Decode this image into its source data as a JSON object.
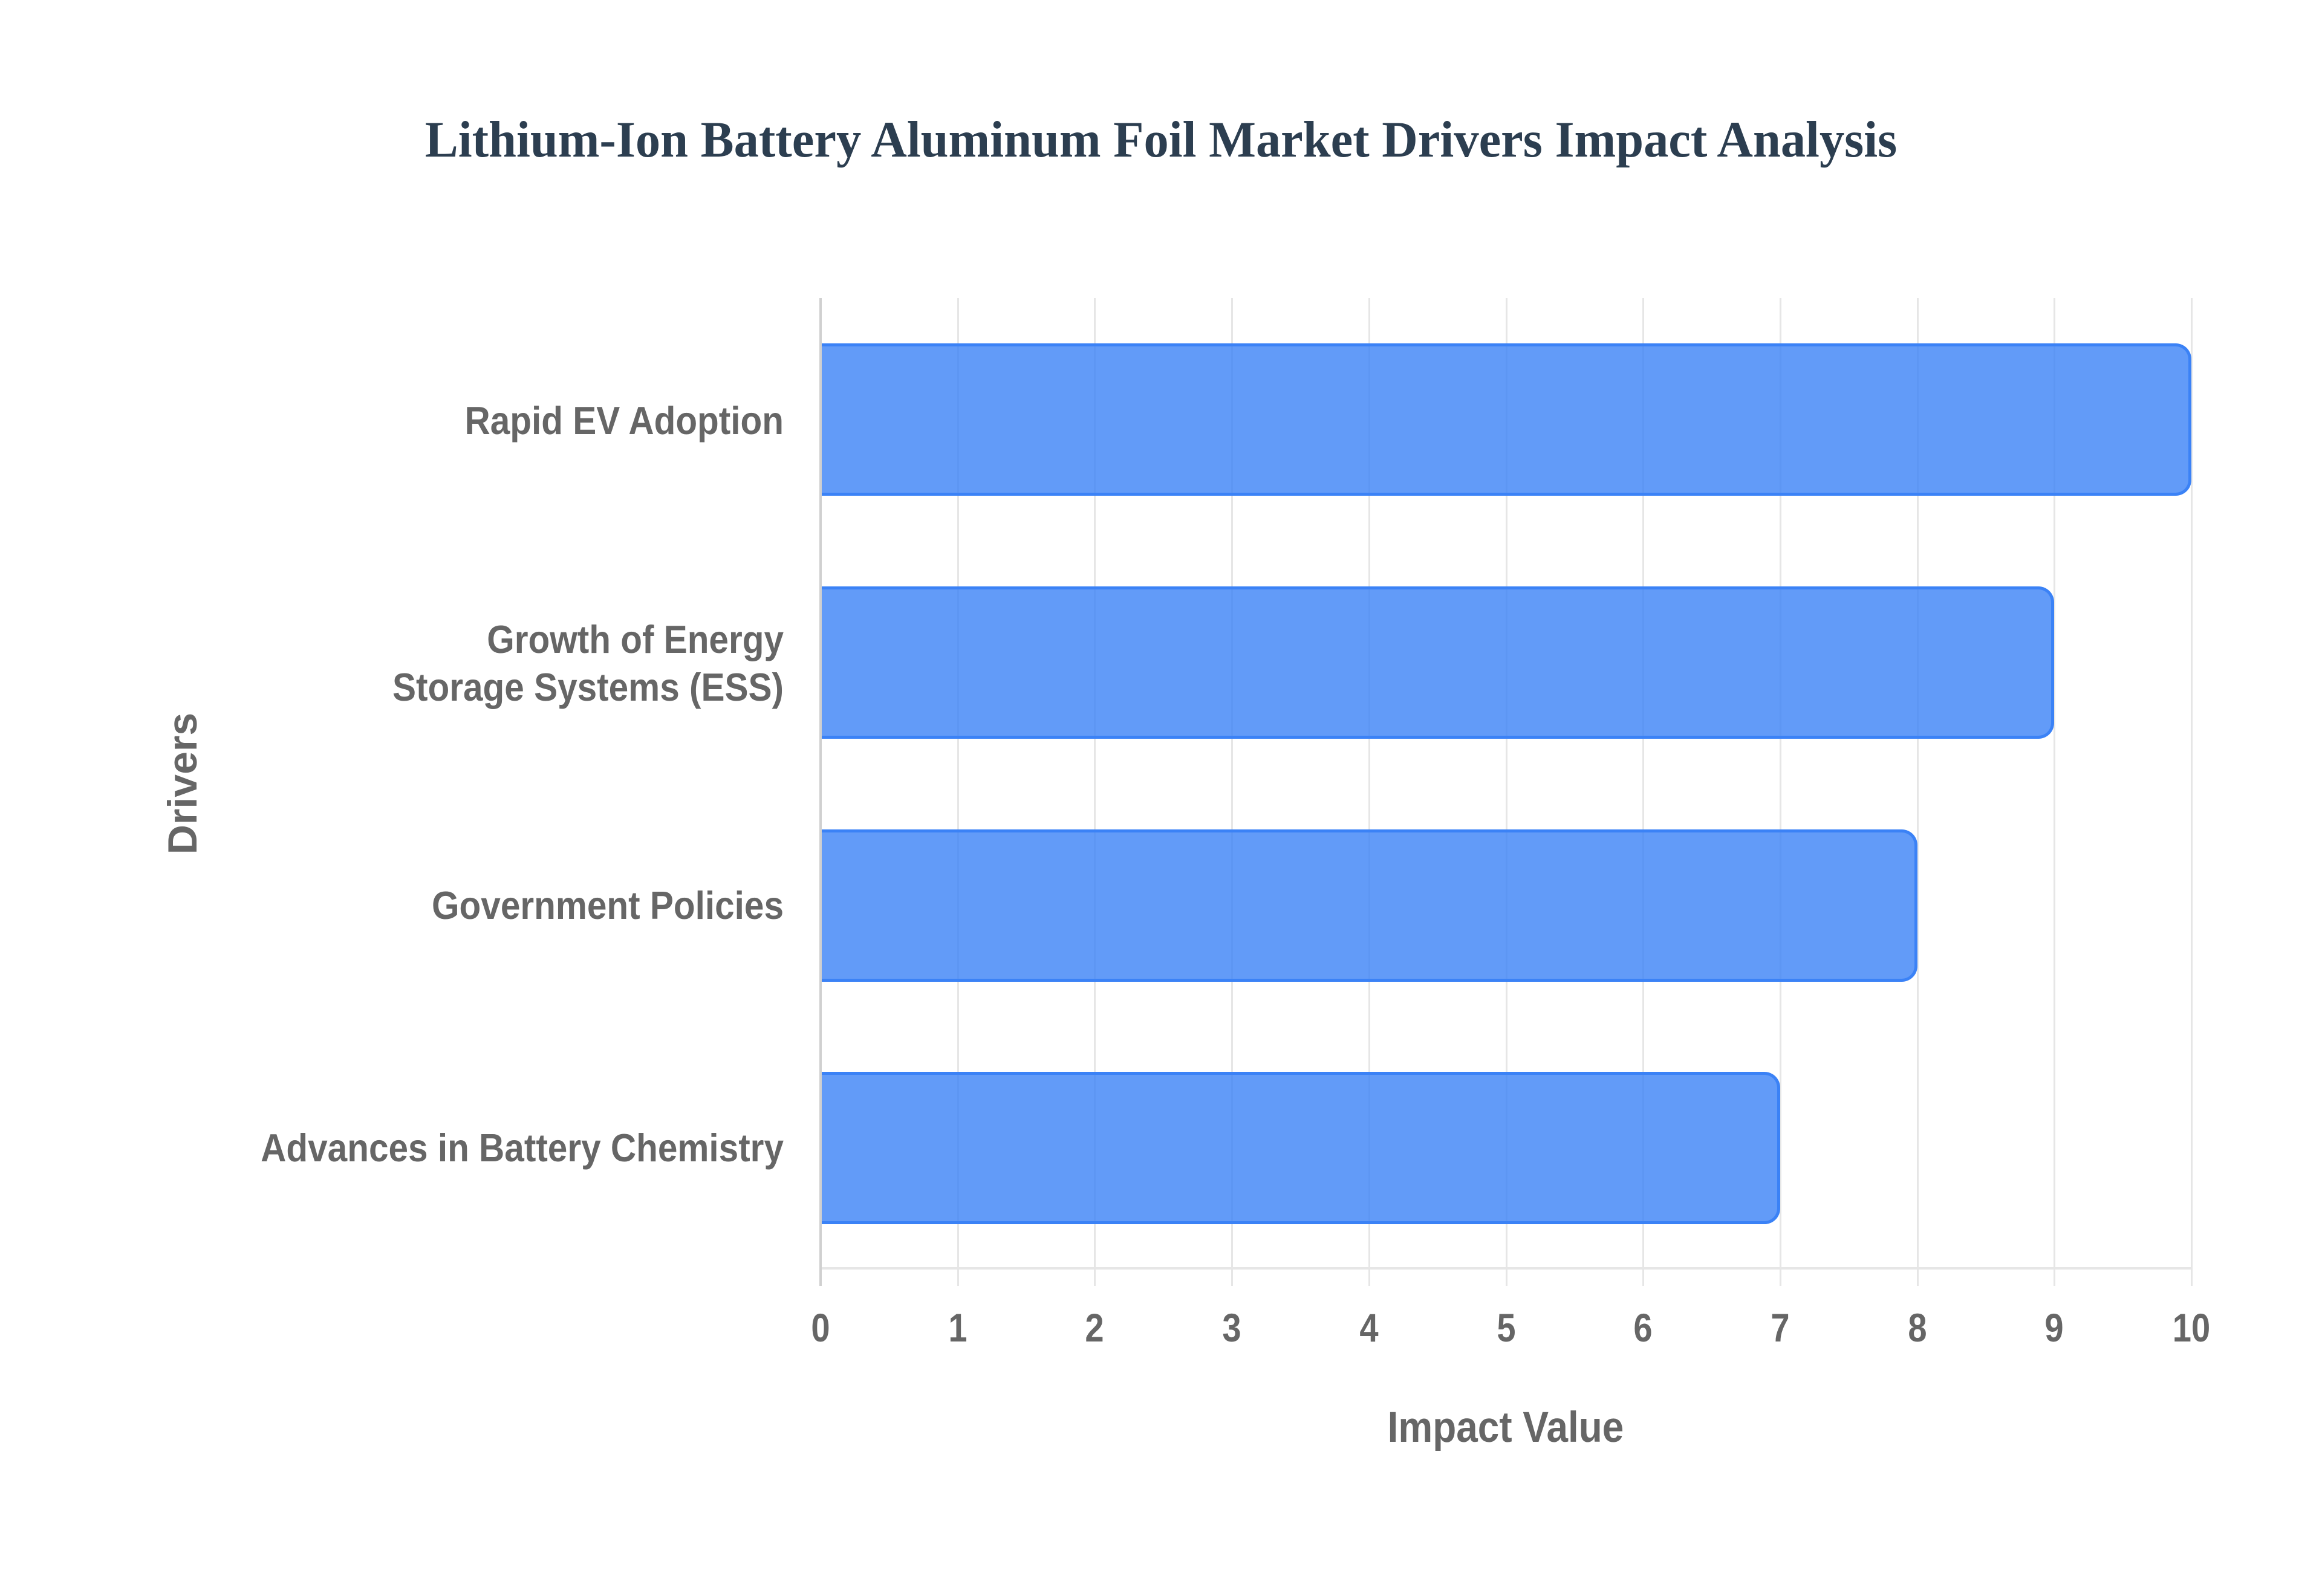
{
  "title": "Lithium-Ion Battery Aluminum Foil Market Drivers Impact Analysis",
  "colors": {
    "title": "#2c3e50",
    "bar_fill": "rgba(59,130,246,0.8)",
    "bar_border": "#3b82f6",
    "axis_text": "#666666",
    "grid": "#e6e6e6"
  },
  "axes": {
    "x_title": "Impact Value",
    "y_title": "Drivers",
    "x_ticks": [
      "0",
      "1",
      "2",
      "3",
      "4",
      "5",
      "6",
      "7",
      "8",
      "9",
      "10"
    ]
  },
  "y_labels": [
    "Rapid EV Adoption",
    "Growth of Energy Storage Systems (ESS)",
    "Government Policies",
    "Advances in Battery Chemistry"
  ],
  "chart_data": {
    "type": "bar",
    "orientation": "horizontal",
    "title": "Lithium-Ion Battery Aluminum Foil Market Drivers Impact Analysis",
    "categories": [
      "Rapid EV Adoption",
      "Growth of Energy Storage Systems (ESS)",
      "Government Policies",
      "Advances in Battery Chemistry"
    ],
    "values": [
      10,
      9,
      8,
      7
    ],
    "xlabel": "Impact Value",
    "ylabel": "Drivers",
    "xlim": [
      0,
      10
    ],
    "x_tick_step": 1,
    "grid": true,
    "legend": false,
    "bar_color": "#3b82f6"
  }
}
